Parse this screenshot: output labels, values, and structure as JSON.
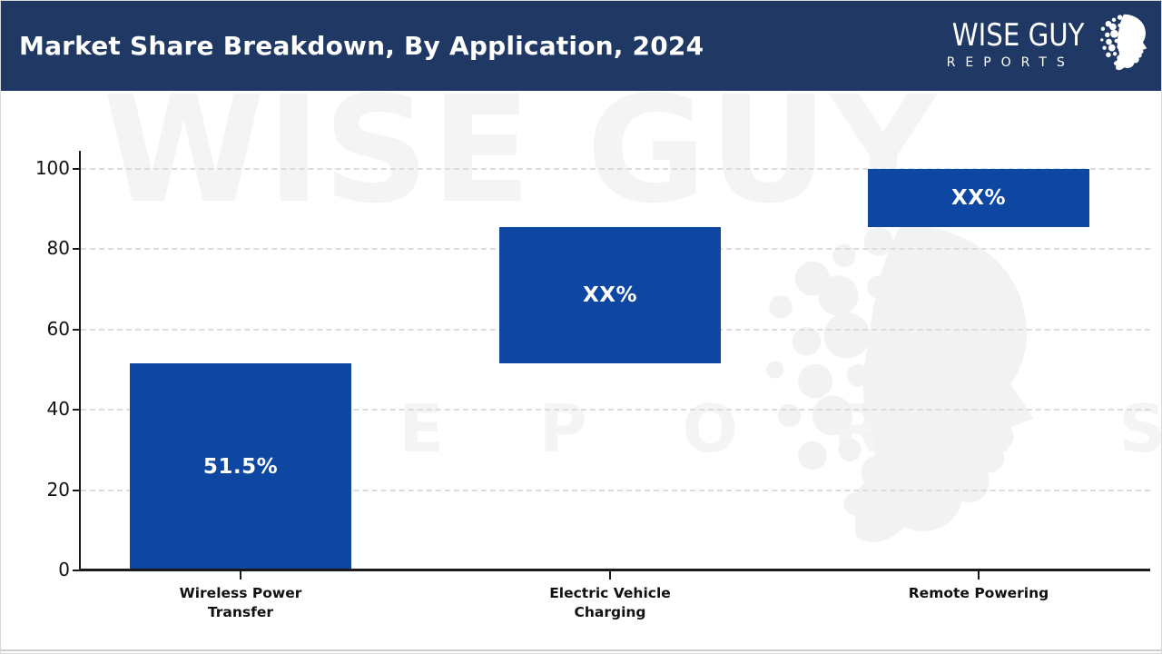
{
  "header": {
    "title": "Market Share Breakdown, By Application, 2024",
    "bg_color": "#1f3864",
    "logo": {
      "line1": "WISE GUY",
      "line2": "REPORTS"
    }
  },
  "watermark": {
    "line1": "WISE GUY",
    "line2": "REPORTS"
  },
  "chart_data": {
    "type": "bar",
    "subtype": "waterfall-floating-bars",
    "title": "Market Share Breakdown, By Application, 2024",
    "categories": [
      "Wireless Power Transfer",
      "Electric Vehicle Charging",
      "Remote Powering"
    ],
    "category_label_lines": [
      [
        "Wireless Power",
        "Transfer"
      ],
      [
        "Electric Vehicle",
        "Charging"
      ],
      [
        "Remote Powering"
      ]
    ],
    "segments": [
      {
        "category": "Wireless Power Transfer",
        "start": 0,
        "end": 51.5,
        "label": "51.5%"
      },
      {
        "category": "Electric Vehicle Charging",
        "start": 51.5,
        "end": 85.5,
        "label": "XX%"
      },
      {
        "category": "Remote Powering",
        "start": 85.5,
        "end": 100,
        "label": "XX%"
      }
    ],
    "yticks": [
      0,
      20,
      40,
      60,
      80,
      100
    ],
    "ylim": [
      0,
      104.5
    ],
    "xlabel": "",
    "ylabel": "",
    "legend": "none",
    "grid": "horizontal-dashed",
    "bar_color": "#0d47a1",
    "bar_label_color": "#ffffff",
    "axis_color": "#1a1a1a",
    "gridline_color": "#dcdcdc"
  }
}
